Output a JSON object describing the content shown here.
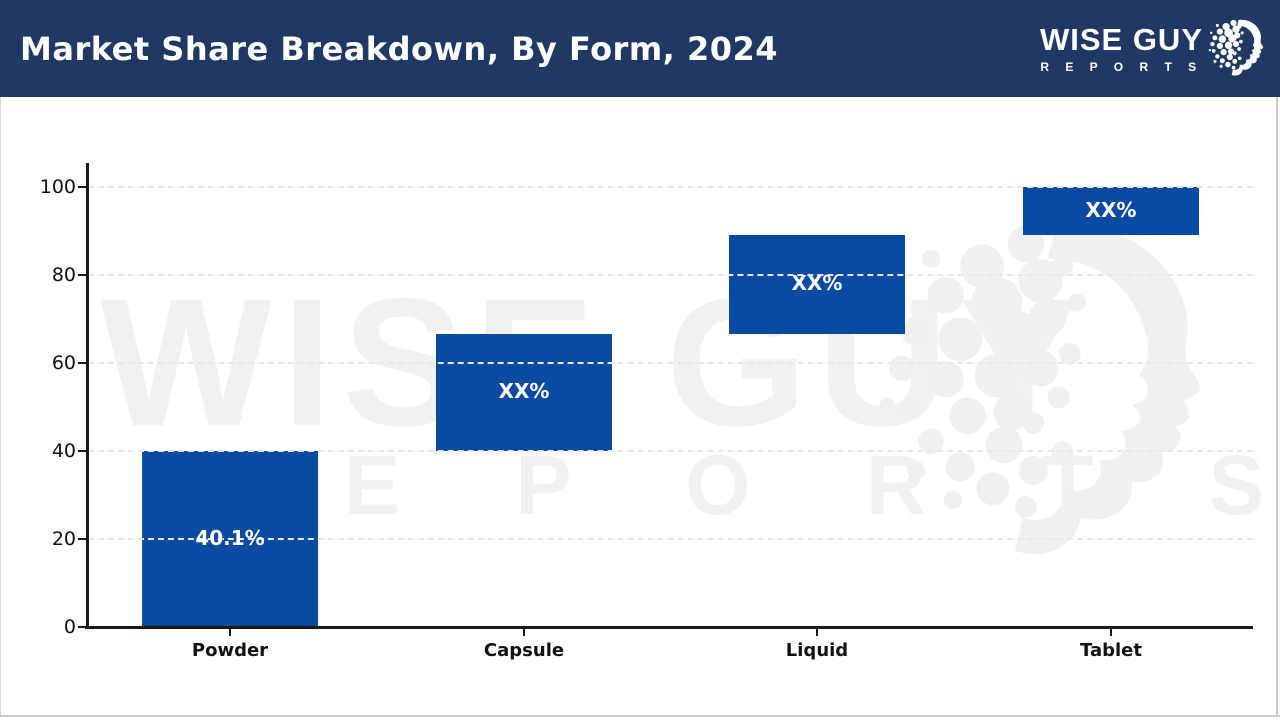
{
  "header": {
    "title": "Market Share Breakdown, By Form, 2024",
    "logo": {
      "wordmark": "WISE GUY",
      "subtext": "R E P O R T S"
    }
  },
  "watermark": {
    "wordmark": "WISE GUY",
    "subtext": "R E P O R T S"
  },
  "chart_data": {
    "type": "bar",
    "subtype": "waterfall",
    "title": "Market Share Breakdown, By Form, 2024",
    "categories": [
      "Powder",
      "Capsule",
      "Liquid",
      "Tablet"
    ],
    "values": [
      40.1,
      26.5,
      22.5,
      10.9
    ],
    "cumulative_spans": [
      [
        0,
        40.1
      ],
      [
        40.1,
        66.6
      ],
      [
        66.6,
        89.1
      ],
      [
        89.1,
        100
      ]
    ],
    "bar_labels": [
      "40.1%",
      "XX%",
      "XX%",
      "XX%"
    ],
    "yticks": [
      0,
      20,
      40,
      60,
      80,
      100
    ],
    "ylim": [
      0,
      105
    ],
    "xlabel": "",
    "ylabel": "",
    "grid": "horizontal-dashed",
    "legend": "none",
    "colors": {
      "bar": "#0a4aa0",
      "bar_label": "#ffffff",
      "axis": "#1a1a1a",
      "gridline": "#e8e8e8",
      "header_bg": "#1f3864",
      "watermark": "#f1f1f1"
    }
  }
}
